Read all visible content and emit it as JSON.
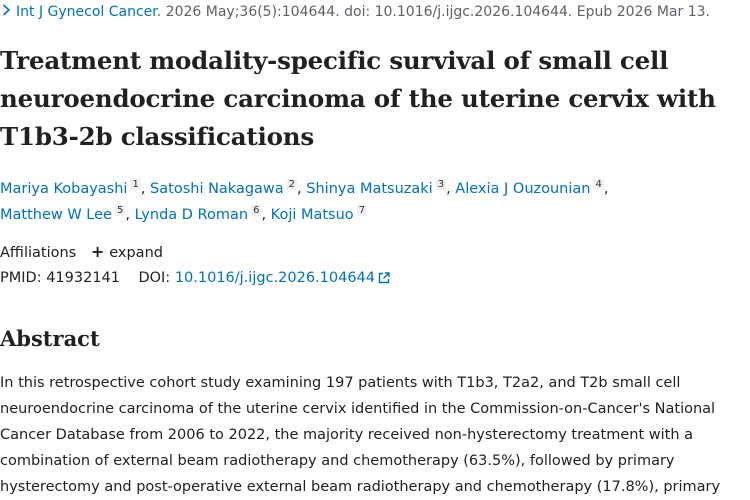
{
  "citation": {
    "journal": "Int J Gynecol Cancer",
    "details": ". 2026 May;36(5):104644. doi: 10.1016/j.ijgc.2026.104644. Epub 2026 Mar 13."
  },
  "title": "Treatment modality-specific survival of small cell neuroendocrine carcinoma of the uterine cervix with T1b3-2b classifications",
  "authors": [
    {
      "name": "Mariya Kobayashi",
      "aff": "1"
    },
    {
      "name": "Satoshi Nakagawa",
      "aff": "2"
    },
    {
      "name": "Shinya Matsuzaki",
      "aff": "3"
    },
    {
      "name": "Alexia J Ouzounian",
      "aff": "4"
    },
    {
      "name": "Matthew W Lee",
      "aff": "5"
    },
    {
      "name": "Lynda D Roman",
      "aff": "6"
    },
    {
      "name": "Koji Matsuo",
      "aff": "7"
    }
  ],
  "affiliations": {
    "label": "Affiliations",
    "expand_label": "expand"
  },
  "identifiers": {
    "pmid_label": "PMID:",
    "pmid": "41932141",
    "doi_label": "DOI:",
    "doi": "10.1016/j.ijgc.2026.104644"
  },
  "abstract": {
    "heading": "Abstract",
    "text": "In this retrospective cohort study examining 197 patients with T1b3, T2a2, and T2b small cell neuroendocrine carcinoma of the uterine cervix identified in the Commission-on-Cancer's National Cancer Database from 2006 to 2022, the majority received non-hysterectomy treatment with a combination of external beam radiotherapy and chemotherapy (63.5%), followed by primary hysterectomy and post-operative external beam radiotherapy and chemotherapy (17.8%), primary"
  },
  "colors": {
    "link": "#0071bc",
    "text": "#212121",
    "muted": "#5b616b"
  },
  "icons": [
    "chevron-right-icon",
    "plus-icon",
    "external-link-icon"
  ]
}
